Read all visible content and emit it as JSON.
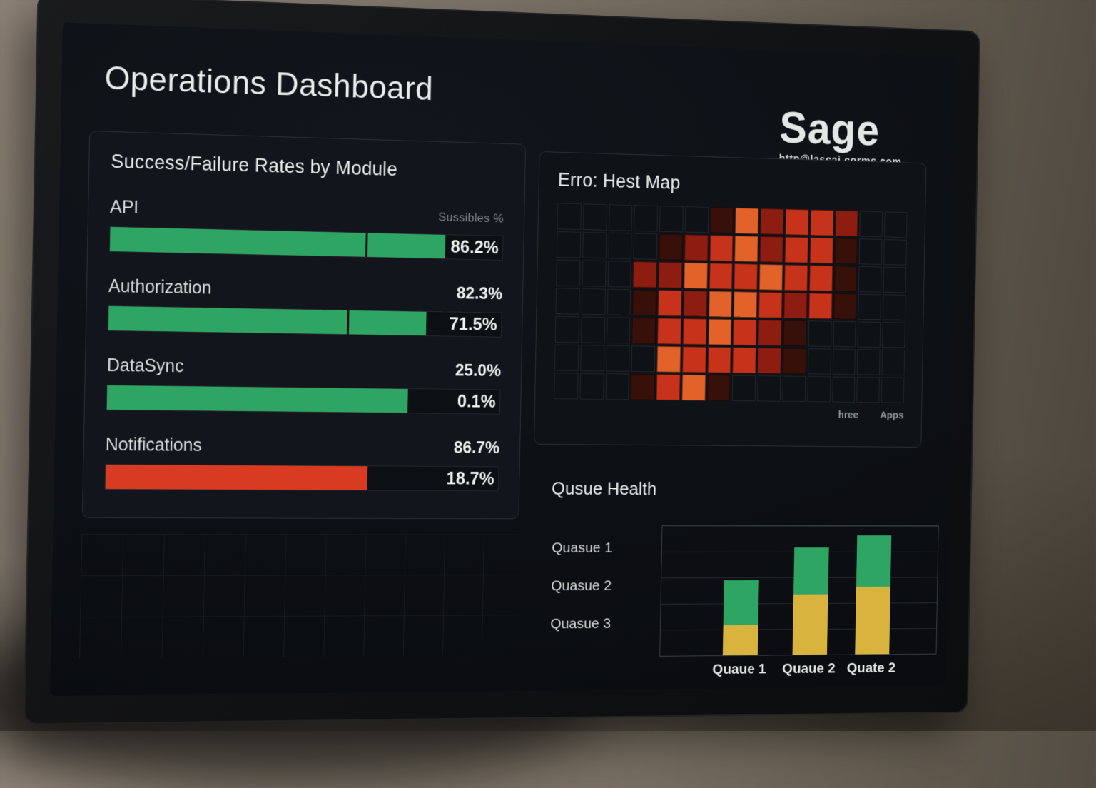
{
  "header": {
    "title": "Operations Dashboard"
  },
  "brand": {
    "name": "Sage",
    "url": "http@lascai.corms.com"
  },
  "colors": {
    "green": "#2ea563",
    "red": "#d93b22",
    "yellow": "#d8b43e",
    "heat_palette": [
      "#0e1116",
      "#38100a",
      "#8c1d10",
      "#c7331a",
      "#e2622a"
    ]
  },
  "modules_panel": {
    "title": "Success/Failure Rates by Module",
    "rows": [
      {
        "label": "API",
        "units_label": "Sussibles %",
        "top_value": "",
        "bar_value": "86.2%",
        "color": "green",
        "segments": [
          64.5,
          20
        ]
      },
      {
        "label": "Authorization",
        "units_label": "",
        "top_value": "82.3%",
        "bar_value": "71.5%",
        "color": "green",
        "segments": [
          60,
          20
        ]
      },
      {
        "label": "DataSync",
        "units_label": "",
        "top_value": "25.0%",
        "bar_value": "0.1%",
        "color": "green",
        "segments": [
          76
        ]
      },
      {
        "label": "Notifications",
        "units_label": "",
        "top_value": "86.7%",
        "bar_value": "18.7%",
        "color": "red",
        "segments": [
          66
        ]
      }
    ]
  },
  "heatmap_panel": {
    "title": "Erro: Hest Map",
    "footer_labels": [
      "hree",
      "Apps"
    ],
    "grid": [
      [
        0,
        0,
        0,
        0,
        0,
        0,
        1,
        4,
        2,
        3,
        3,
        2,
        0,
        0
      ],
      [
        0,
        0,
        0,
        0,
        1,
        2,
        3,
        4,
        2,
        3,
        3,
        1,
        0,
        0
      ],
      [
        0,
        0,
        0,
        2,
        2,
        4,
        3,
        3,
        4,
        3,
        3,
        1,
        0,
        0
      ],
      [
        0,
        0,
        0,
        1,
        3,
        2,
        4,
        4,
        3,
        2,
        3,
        1,
        0,
        0
      ],
      [
        0,
        0,
        0,
        1,
        3,
        3,
        4,
        3,
        2,
        1,
        0,
        0,
        0,
        0
      ],
      [
        0,
        0,
        0,
        0,
        4,
        3,
        3,
        3,
        2,
        1,
        0,
        0,
        0,
        0
      ],
      [
        0,
        0,
        0,
        1,
        3,
        4,
        1,
        0,
        0,
        0,
        0,
        0,
        0,
        0
      ]
    ]
  },
  "queue_section": {
    "title": "Qusue Health",
    "y_labels": [
      "Quasue 1",
      "Quasue 2",
      "Quasue 3"
    ],
    "x_labels": [
      "Quaue 1",
      "Quaue 2",
      "Quate 2"
    ],
    "bars": [
      {
        "yellow": 25,
        "green": 37
      },
      {
        "yellow": 50,
        "green": 39
      },
      {
        "yellow": 56,
        "green": 43
      }
    ]
  },
  "chart_data": [
    {
      "type": "bar",
      "orientation": "horizontal",
      "title": "Success/Failure Rates by Module",
      "categories": [
        "API",
        "Authorization",
        "DataSync",
        "Notifications"
      ],
      "series": [
        {
          "name": "bar_fill_percent_of_track",
          "values": [
            86,
            81,
            76,
            66
          ]
        }
      ],
      "data_labels": {
        "API": [
          "86.2%"
        ],
        "Authorization": [
          "82.3%",
          "71.5%"
        ],
        "DataSync": [
          "25.0%",
          "0.1%"
        ],
        "Notifications": [
          "86.7%",
          "18.7%"
        ]
      },
      "bar_colors": [
        "green",
        "green",
        "green",
        "red"
      ],
      "xlabel": "",
      "ylabel": "",
      "legend": "Sussibles %"
    },
    {
      "type": "heatmap",
      "title": "Erro: Hest Map",
      "rows": 7,
      "cols": 14,
      "intensity_scale": [
        0,
        4
      ],
      "values": [
        [
          0,
          0,
          0,
          0,
          0,
          0,
          1,
          4,
          2,
          3,
          3,
          2,
          0,
          0
        ],
        [
          0,
          0,
          0,
          0,
          1,
          2,
          3,
          4,
          2,
          3,
          3,
          1,
          0,
          0
        ],
        [
          0,
          0,
          0,
          2,
          2,
          4,
          3,
          3,
          4,
          3,
          3,
          1,
          0,
          0
        ],
        [
          0,
          0,
          0,
          1,
          3,
          2,
          4,
          4,
          3,
          2,
          3,
          1,
          0,
          0
        ],
        [
          0,
          0,
          0,
          1,
          3,
          3,
          4,
          3,
          2,
          1,
          0,
          0,
          0,
          0
        ],
        [
          0,
          0,
          0,
          0,
          4,
          3,
          3,
          3,
          2,
          1,
          0,
          0,
          0,
          0
        ],
        [
          0,
          0,
          0,
          1,
          3,
          4,
          1,
          0,
          0,
          0,
          0,
          0,
          0,
          0
        ]
      ],
      "annotations": [
        "hree",
        "Apps"
      ]
    },
    {
      "type": "bar",
      "stacked": true,
      "title": "Qusue Health",
      "categories": [
        "Quaue 1",
        "Quaue 2",
        "Quate 2"
      ],
      "series": [
        {
          "name": "yellow",
          "values": [
            25,
            50,
            56
          ]
        },
        {
          "name": "green",
          "values": [
            37,
            39,
            43
          ]
        }
      ],
      "y_axis_text_labels": [
        "Quasue 1",
        "Quasue 2",
        "Quasue 3"
      ],
      "ylim": [
        0,
        105
      ],
      "grid": true,
      "legend_position": "none"
    }
  ]
}
